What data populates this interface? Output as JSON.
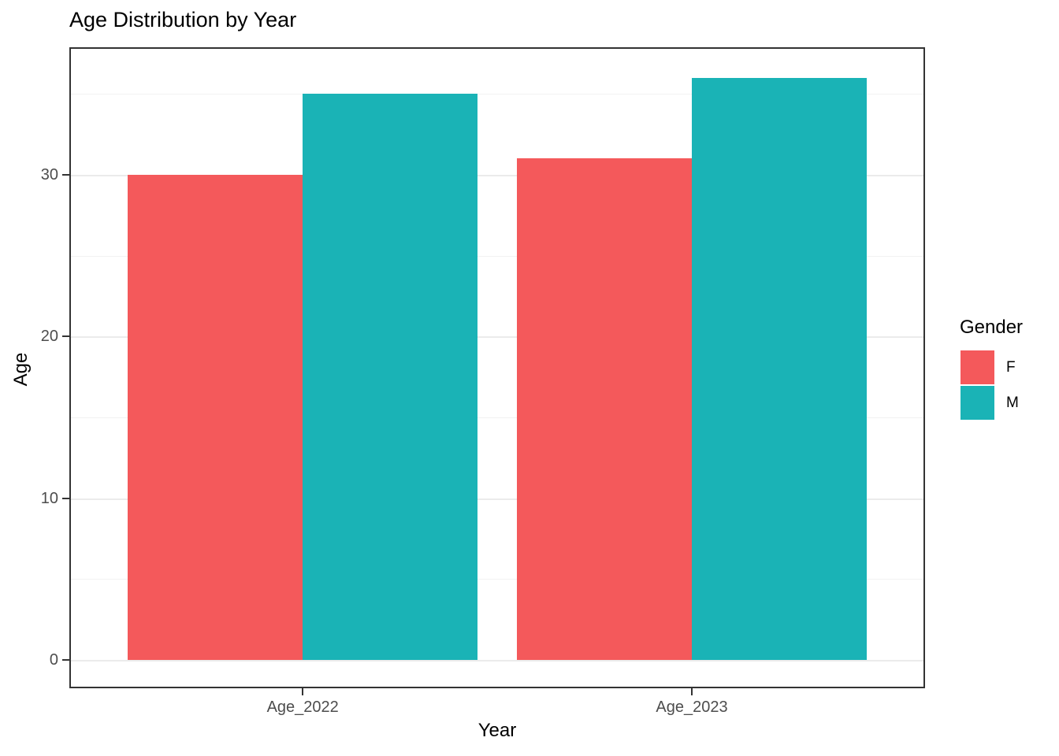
{
  "title": "Age Distribution by Year",
  "x_axis": {
    "label": "Year",
    "tick_labels": [
      "Age_2022",
      "Age_2023"
    ]
  },
  "y_axis": {
    "label": "Age",
    "tick_labels": [
      "0",
      "10",
      "20",
      "30"
    ]
  },
  "legend": {
    "title": "Gender",
    "entries": [
      {
        "label": "F",
        "color": "#F4595B"
      },
      {
        "label": "M",
        "color": "#1AB3B6"
      }
    ]
  },
  "chart_data": {
    "type": "bar",
    "title": "Age Distribution by Year",
    "xlabel": "Year",
    "ylabel": "Age",
    "categories": [
      "Age_2022",
      "Age_2023"
    ],
    "series": [
      {
        "name": "F",
        "color": "#F4595B",
        "values": [
          30,
          31
        ]
      },
      {
        "name": "M",
        "color": "#1AB3B6",
        "values": [
          35,
          36
        ]
      }
    ],
    "ylim": [
      0,
      36
    ],
    "y_major_ticks": [
      0,
      10,
      20,
      30
    ],
    "y_minor_ticks": [
      5,
      15,
      25,
      35
    ],
    "grid": true,
    "legend_position": "right",
    "legend_title": "Gender"
  }
}
